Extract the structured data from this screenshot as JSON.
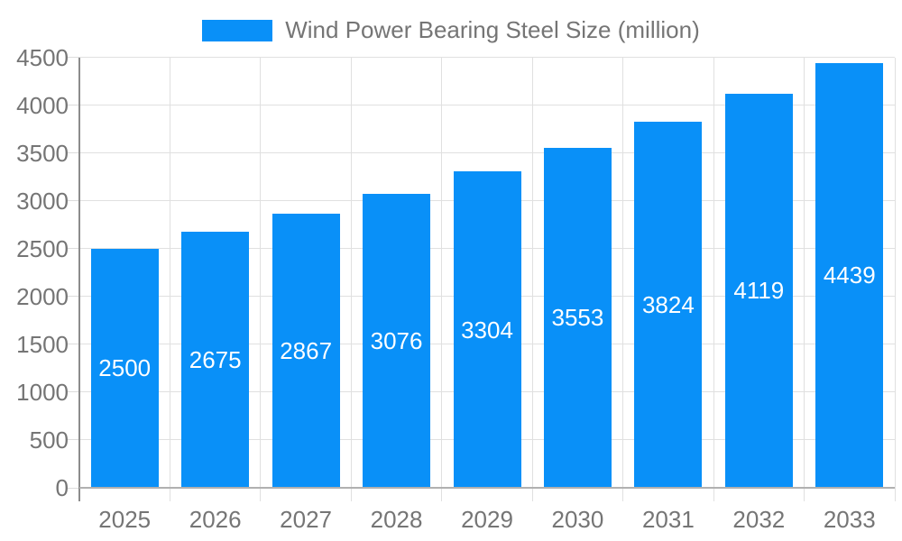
{
  "legend": {
    "label": "Wind Power Bearing Steel Size (million)"
  },
  "colors": {
    "bar": "#0990f8",
    "bar_value_label": "#ffffff",
    "axis_text": "#757575",
    "legend_text": "#757575",
    "gridline": "#e0e0e0",
    "x_axis_line": "#b0b0b0",
    "y_axis_line": "#8c8c8c",
    "background": "#ffffff"
  },
  "chart_data": {
    "type": "bar",
    "title": "Wind Power Bearing Steel Size (million)",
    "series_name": "Wind Power Bearing Steel Size (million)",
    "categories": [
      "2025",
      "2026",
      "2027",
      "2028",
      "2029",
      "2030",
      "2031",
      "2032",
      "2033"
    ],
    "values": [
      2500,
      2675,
      2867,
      3076,
      3304,
      3553,
      3824,
      4119,
      4439
    ],
    "data_labels_visible": true,
    "data_label_position": "inside-center",
    "xlabel": "",
    "ylabel": "",
    "ylim": [
      0,
      4500
    ],
    "ytick_step": 500,
    "yticks": [
      "0",
      "500",
      "1000",
      "1500",
      "2000",
      "2500",
      "3000",
      "3500",
      "4000",
      "4500"
    ],
    "grid": true,
    "legend_position": "top-center"
  }
}
